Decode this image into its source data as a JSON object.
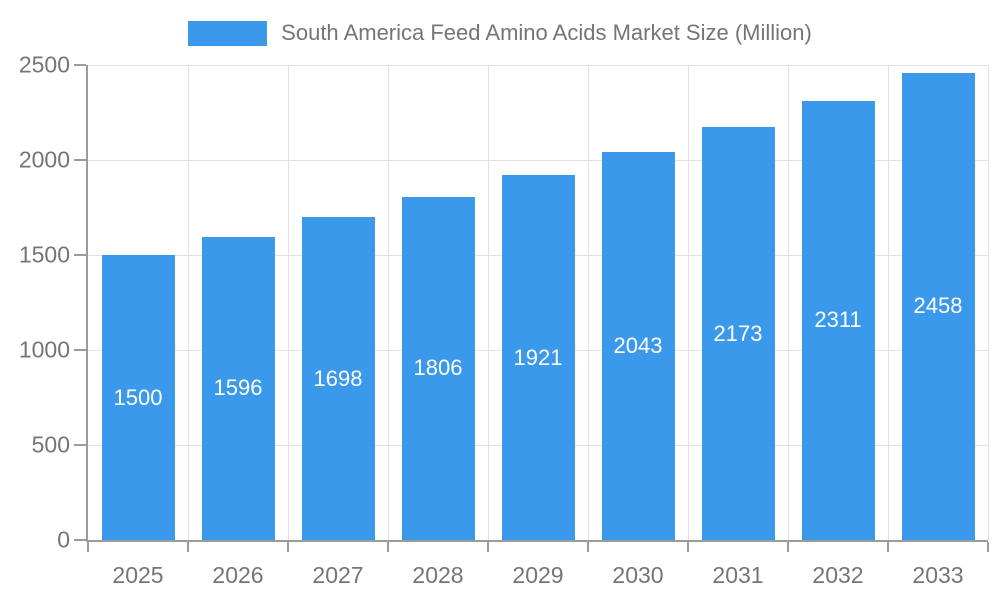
{
  "chart_data": {
    "type": "bar",
    "title": "South America Feed Amino Acids Market Size (Million)",
    "legend_entries": [
      "South America Feed Amino Acids Market Size (Million)"
    ],
    "categories": [
      "2025",
      "2026",
      "2027",
      "2028",
      "2029",
      "2030",
      "2031",
      "2032",
      "2033"
    ],
    "values": [
      1500,
      1596,
      1698,
      1806,
      1921,
      2043,
      2173,
      2311,
      2458
    ],
    "value_labels": [
      "1500",
      "1596",
      "1698",
      "1806",
      "1921",
      "2043",
      "2173",
      "2311",
      "2458"
    ],
    "xlabel": "",
    "ylabel": "",
    "ylim": [
      0,
      2500
    ],
    "y_ticks": [
      0,
      500,
      1000,
      1500,
      2000,
      2500
    ],
    "y_tick_labels": [
      "0",
      "500",
      "1000",
      "1500",
      "2000",
      "2500"
    ],
    "grid": true,
    "legend_position": "top",
    "value_label_position": "inside-center",
    "colors": {
      "bar": "#3B99EC",
      "value_label_text": "#ffffff",
      "axis_text": "#757575",
      "axis_line": "#9b9b9b",
      "gridline": "#e2e2e2",
      "background": "#ffffff"
    }
  }
}
